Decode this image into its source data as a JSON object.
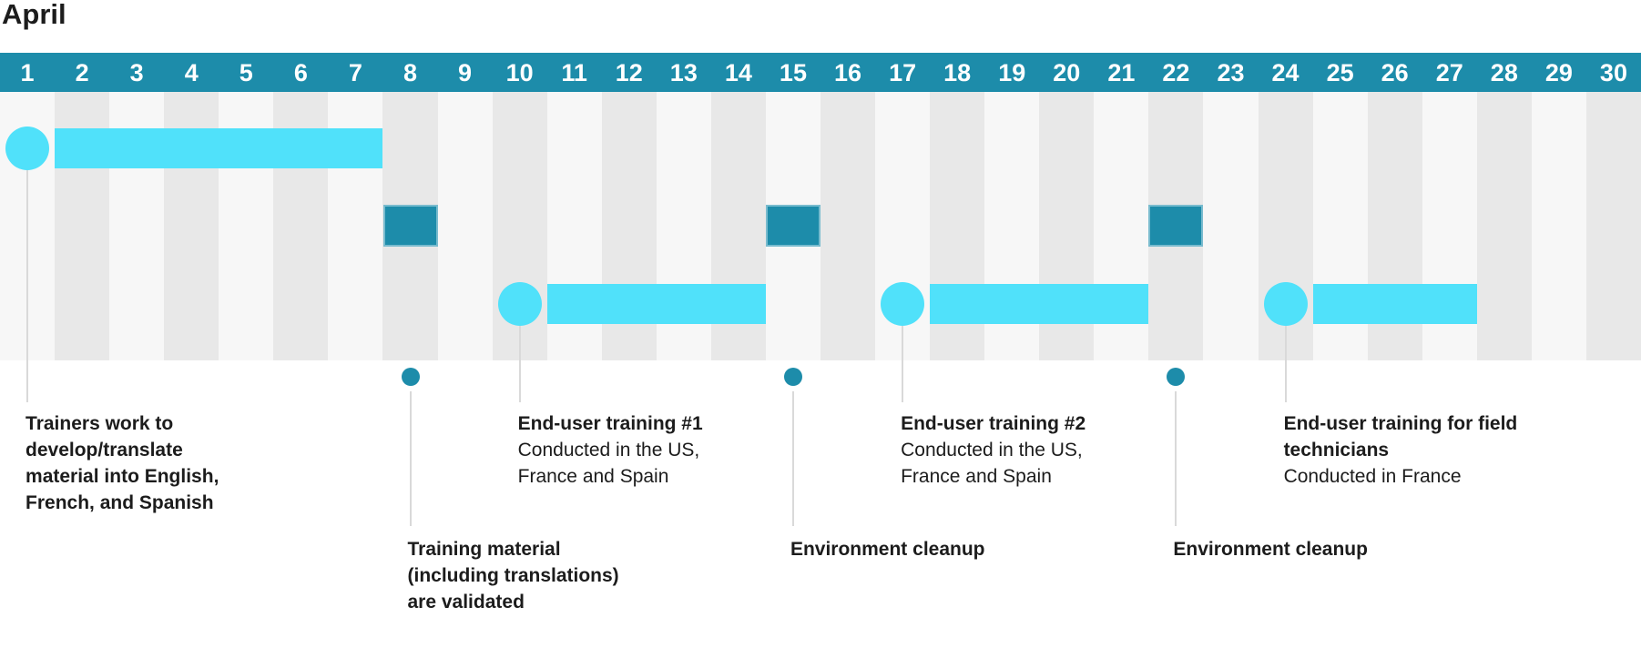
{
  "page_title": "April",
  "colors": {
    "header_teal": "#1d8caa",
    "milestone_teal": "#1d8caa",
    "bar_cyan": "#50e1fa",
    "stripe_dark": "#e8e8e8",
    "stripe_light": "#f7f7f7",
    "connector_gray": "#d9d9d9",
    "text_dark": "#1c1c1c",
    "day_number_color": "#ffffff"
  },
  "header": {
    "days": [
      "1",
      "2",
      "3",
      "4",
      "5",
      "6",
      "7",
      "8",
      "9",
      "10",
      "11",
      "12",
      "13",
      "14",
      "15",
      "16",
      "17",
      "18",
      "19",
      "20",
      "21",
      "22",
      "23",
      "24",
      "25",
      "26",
      "27",
      "28",
      "29",
      "30"
    ]
  },
  "chart_data": {
    "type": "gantt",
    "title": "April",
    "x_axis": {
      "unit": "day of April",
      "range": [
        1,
        30
      ],
      "tick_labels": [
        "1",
        "2",
        "3",
        "4",
        "5",
        "6",
        "7",
        "8",
        "9",
        "10",
        "11",
        "12",
        "13",
        "14",
        "15",
        "16",
        "17",
        "18",
        "19",
        "20",
        "21",
        "22",
        "23",
        "24",
        "25",
        "26",
        "27",
        "28",
        "29",
        "30"
      ]
    },
    "grid": "alternating vertical day stripes, even-numbered days shaded",
    "legend": "cyan circle = task start marker, cyan bar = task duration, teal square = milestone on timeline, teal dot = milestone callout",
    "tasks": [
      {
        "name": "Trainers work to develop/translate material into English, French, and Spanish",
        "marker_day": 1,
        "bar_start_day": 2,
        "bar_end_day": 7,
        "row": 1,
        "label_lines": [
          "Trainers work to",
          "develop/translate",
          "material into English,",
          "French, and Spanish"
        ],
        "detail_lines": []
      },
      {
        "name": "End-user training #1",
        "marker_day": 10,
        "bar_start_day": 11,
        "bar_end_day": 14,
        "row": 3,
        "label_lines": [
          "End-user training #1"
        ],
        "detail_lines": [
          "Conducted in the US,",
          "France and Spain"
        ]
      },
      {
        "name": "End-user training #2",
        "marker_day": 17,
        "bar_start_day": 18,
        "bar_end_day": 21,
        "row": 3,
        "label_lines": [
          "End-user training #2"
        ],
        "detail_lines": [
          "Conducted in the US,",
          "France and Spain"
        ]
      },
      {
        "name": "End-user training for field technicians",
        "marker_day": 24,
        "bar_start_day": 25,
        "bar_end_day": 27,
        "row": 3,
        "label_lines": [
          "End-user training for field",
          "technicians"
        ],
        "detail_lines": [
          "Conducted in France"
        ]
      }
    ],
    "milestones": [
      {
        "name": "Training material (including translations) are validated",
        "day": 8,
        "label_lines": [
          "Training material",
          "(including translations)",
          "are validated"
        ]
      },
      {
        "name": "Environment cleanup",
        "day": 15,
        "label_lines": [
          "Environment cleanup"
        ]
      },
      {
        "name": "Environment cleanup",
        "day": 22,
        "label_lines": [
          "Environment cleanup"
        ]
      }
    ]
  }
}
